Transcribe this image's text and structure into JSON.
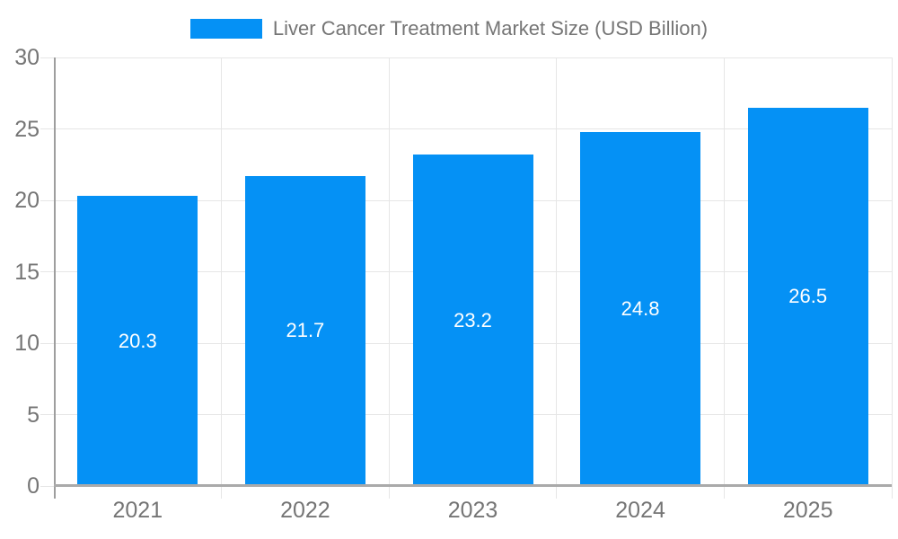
{
  "chart_data": {
    "type": "bar",
    "title": "Liver Cancer Treatment Market Size (USD Billion)",
    "legend": {
      "position": "top",
      "label": "Liver Cancer Treatment Market Size (USD Billion)"
    },
    "categories": [
      "2021",
      "2022",
      "2023",
      "2024",
      "2025"
    ],
    "series": [
      {
        "name": "Liver Cancer Treatment Market Size (USD Billion)",
        "values": [
          20.3,
          21.7,
          23.2,
          24.8,
          26.5
        ]
      }
    ],
    "value_labels": [
      "20.3",
      "21.7",
      "23.2",
      "24.8",
      "26.5"
    ],
    "xlabel": "",
    "ylabel": "",
    "ylim": [
      0,
      30
    ],
    "yticks": [
      0,
      5,
      10,
      15,
      20,
      25,
      30
    ],
    "grid": true,
    "colors": {
      "bar": "#0591F5",
      "value_label": "#ffffff",
      "axis_text": "#757575",
      "gridline": "#e6e6e6",
      "axis_line": "#9e9e9e",
      "baseline": "#aaaaaa"
    }
  }
}
